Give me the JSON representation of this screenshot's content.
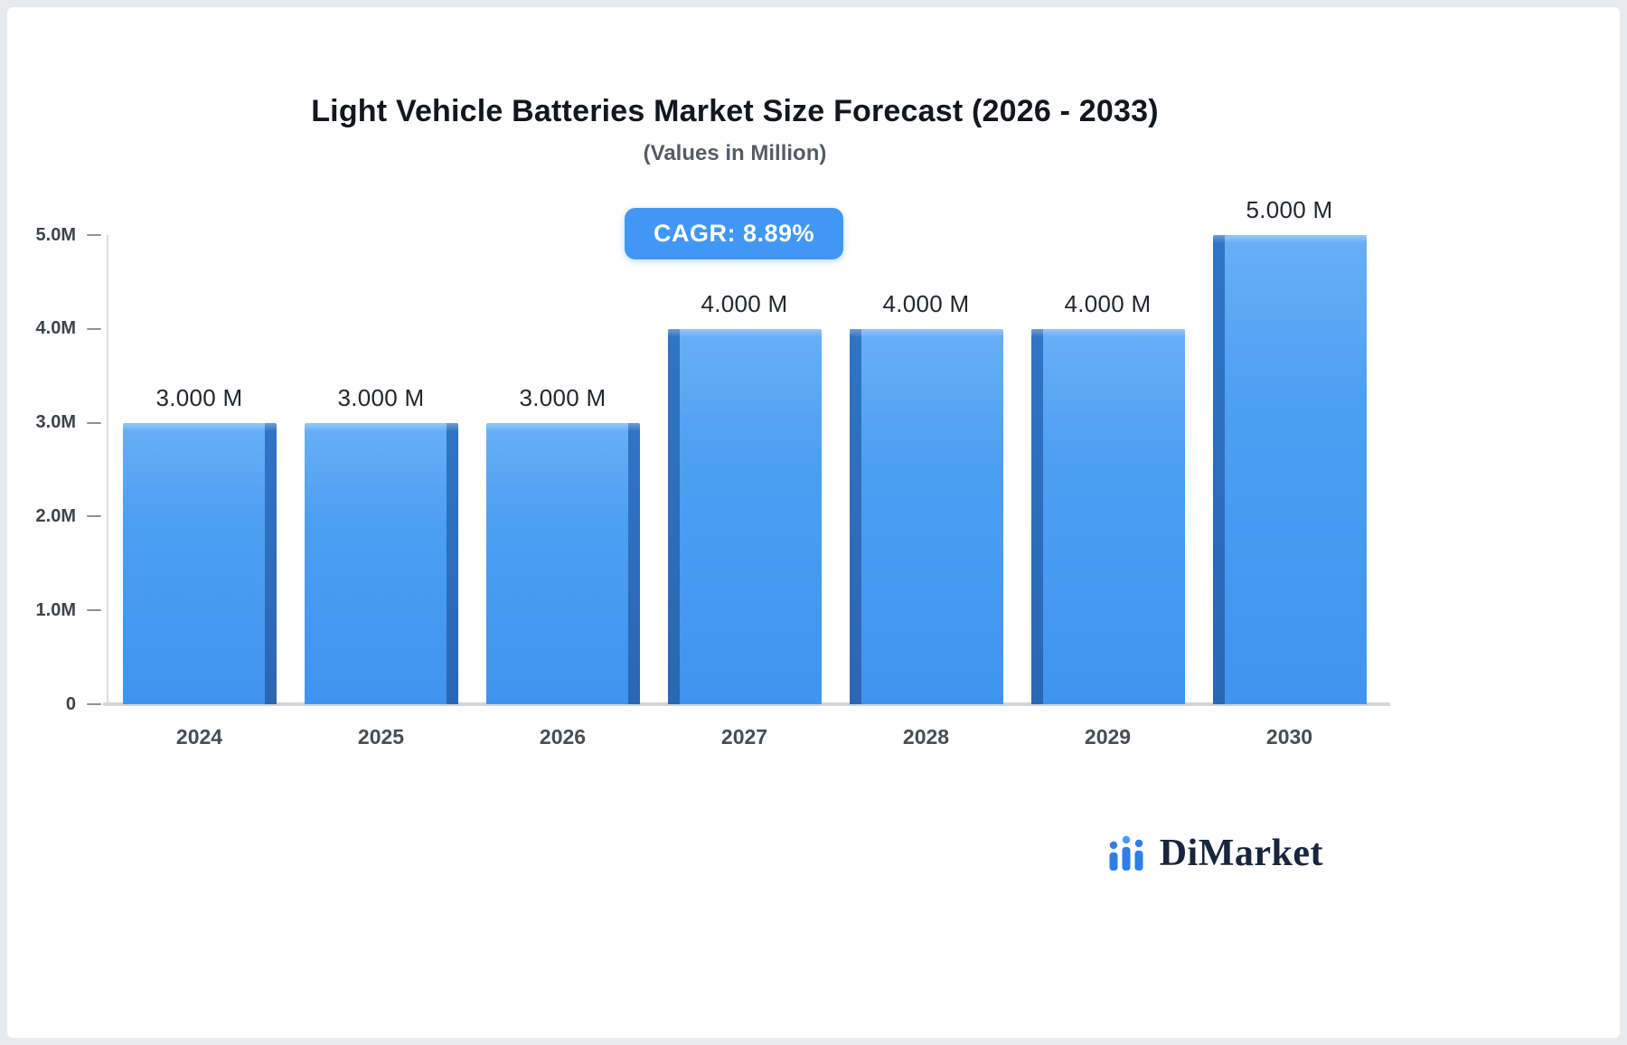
{
  "page": {
    "background": "#e9eaec",
    "card_background": "#ffffff"
  },
  "header": {
    "title": "Light Vehicle Batteries Market Size Forecast (2026 - 2033)",
    "subtitle": "(Values in Million)"
  },
  "badge": {
    "label": "CAGR: 8.89%",
    "background": "#4097f6",
    "text_color": "#ffffff"
  },
  "chart_data": {
    "type": "bar",
    "title": "Light Vehicle Batteries Market Size Forecast (2026 - 2033)",
    "subtitle": "(Values in Million)",
    "categories": [
      "2024",
      "2025",
      "2026",
      "2027",
      "2028",
      "2029",
      "2030"
    ],
    "values": [
      3.0,
      3.0,
      3.0,
      4.0,
      4.0,
      4.0,
      5.0
    ],
    "value_labels": [
      "3.000 M",
      "3.000 M",
      "3.000 M",
      "4.000 M",
      "4.000 M",
      "4.000 M",
      "5.000 M"
    ],
    "unit": "Million",
    "xlabel": "",
    "ylabel": "",
    "ylim": [
      0,
      5
    ],
    "yticks": [
      0,
      1,
      2,
      3,
      4,
      5
    ],
    "ytick_labels": [
      "0",
      "1.0M",
      "2.0M",
      "3.0M",
      "4.0M",
      "5.0M"
    ],
    "grid": false,
    "legend": false,
    "bar_color_top": "#68b0f7",
    "bar_color_bottom": "#3f94ef",
    "bar_side_color": "#2d6fbe",
    "annotation": "CAGR: 8.89%"
  },
  "footer": {
    "brand": "DiMarket",
    "logo_icon": "bar-chart-icon",
    "brand_color": "#18253d",
    "icon_color": "#2e7de9"
  }
}
